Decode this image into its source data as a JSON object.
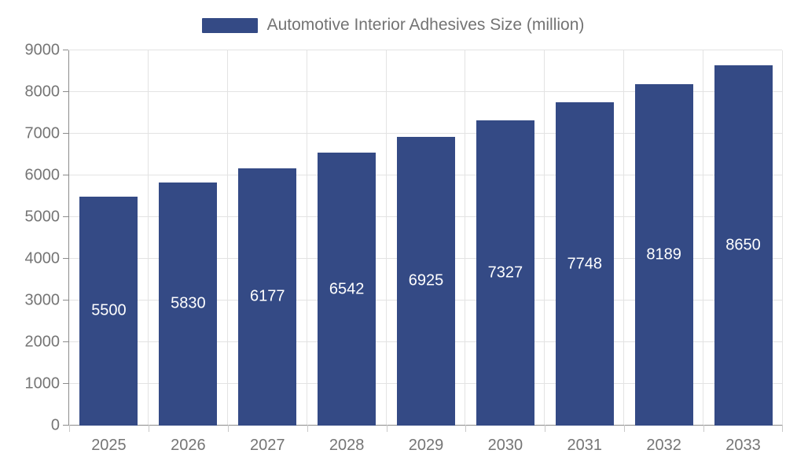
{
  "legend": {
    "label": "Automotive Interior Adhesives Size (million)"
  },
  "chart_data": {
    "type": "bar",
    "title": "Automotive Interior Adhesives Size (million)",
    "categories": [
      "2025",
      "2026",
      "2027",
      "2028",
      "2029",
      "2030",
      "2031",
      "2032",
      "2033"
    ],
    "values": [
      5500,
      5830,
      6177,
      6542,
      6925,
      7327,
      7748,
      8189,
      8650
    ],
    "xlabel": "",
    "ylabel": "",
    "ylim": [
      0,
      9000
    ],
    "ytick_step": 1000,
    "yticks": [
      0,
      1000,
      2000,
      3000,
      4000,
      5000,
      6000,
      7000,
      8000,
      9000
    ],
    "grid": true,
    "legend_position": "top-center",
    "value_labels": "inside-center"
  },
  "colors": {
    "bar": "#344a85",
    "bar_value_label": "#ffffff",
    "axis_line": "#8c8c8c",
    "gridline": "#e3e3e3",
    "x_tick": "#c9c9c9",
    "axis_text": "#757575",
    "legend_text": "#737373",
    "background": "#ffffff"
  }
}
